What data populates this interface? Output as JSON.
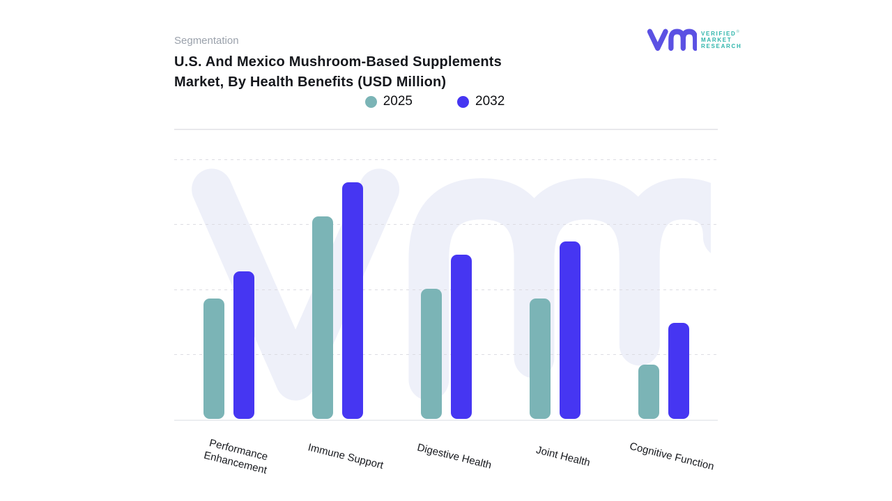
{
  "header": {
    "eyebrow": "Segmentation",
    "title_line1": "U.S. And Mexico Mushroom-Based Supplements",
    "title_line2": "Market, By Health Benefits (USD Million)"
  },
  "logo": {
    "name": "Verified Market Research",
    "glyph": "vm-monogram",
    "word1": "VERIFIED",
    "word2": "MARKET",
    "word3": "RESEARCH",
    "registered": "®",
    "glyph_color": "#5b51e3",
    "text_color": "#2eb5ab"
  },
  "legend": {
    "items": [
      {
        "label": "2025",
        "color": "#7bb4b6"
      },
      {
        "label": "2032",
        "color": "#4636f2"
      }
    ]
  },
  "chart_data": {
    "type": "bar",
    "title": "U.S. And Mexico Mushroom-Based Supplements Market, By Health Benefits (USD Million)",
    "categories": [
      "Performance Enhancement",
      "Immune Support",
      "Digestive Health",
      "Joint Health",
      "Cognitive Function"
    ],
    "series": [
      {
        "name": "2025",
        "color": "#7bb4b6",
        "values": [
          1.86,
          3.12,
          2.0,
          1.86,
          0.84
        ]
      },
      {
        "name": "2032",
        "color": "#4636f2",
        "values": [
          2.27,
          3.65,
          2.53,
          2.73,
          1.48
        ]
      }
    ],
    "xlabel": "",
    "ylabel": "",
    "ylim": [
      0,
      4
    ],
    "y_axis_tick_labels_visible": false,
    "y_units": "relative (y-axis unlabeled; 1 = one gridline spacing)",
    "grid": "horizontal dashed",
    "legend_position": "top center",
    "background_watermark": "vm monogram"
  }
}
